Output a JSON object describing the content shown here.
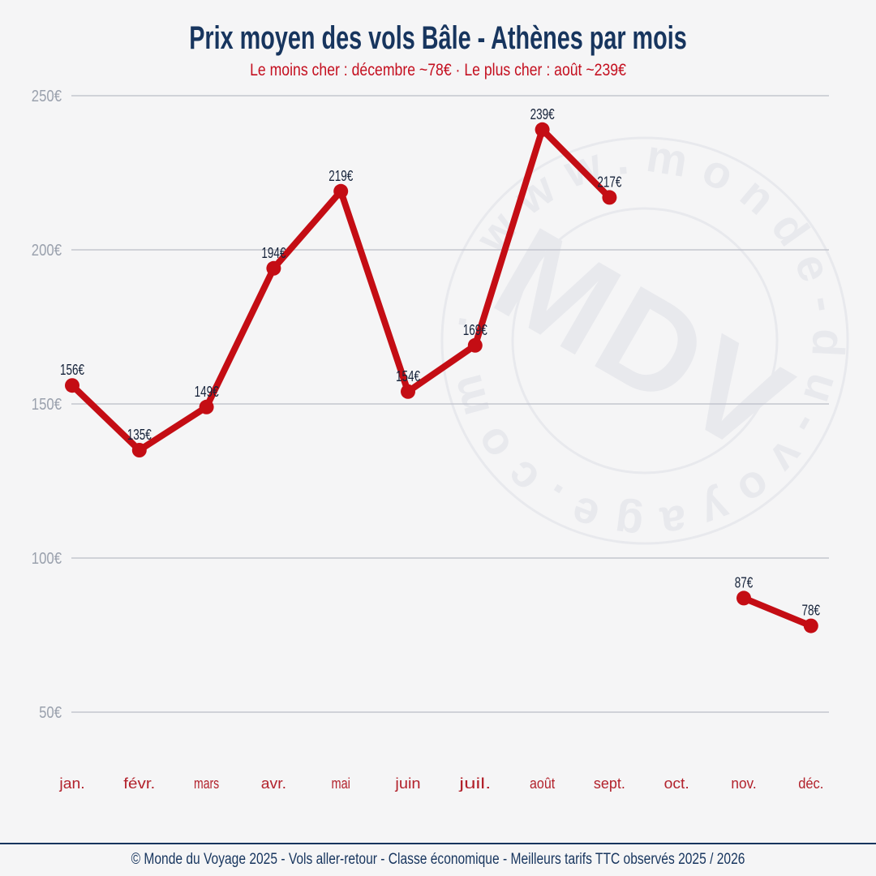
{
  "header": {
    "title": "Prix moyen des vols Bâle - Athènes par mois",
    "subtitle": "Le moins cher : décembre ~78€ · Le plus cher : août ~239€"
  },
  "footer": {
    "text": "© Monde du Voyage 2025 - Vols aller-retour - Classe économique - Meilleurs tarifs TTC observés 2025 / 2026"
  },
  "watermark": {
    "circle_text": "www.monde-du-voyage.com ·",
    "center_text": "MDV"
  },
  "colors": {
    "background": "#f5f5f6",
    "title": "#17355e",
    "subtitle": "#c40f1f",
    "line": "#c40d14",
    "grid": "#c3c6ce",
    "axis_tick": "#9aa1ad",
    "month_label": "#b2222c",
    "value_label": "#16233a",
    "footer_text": "#17355e",
    "footer_rule": "#17355e",
    "watermark": "#e8e9ed"
  },
  "chart_data": {
    "type": "line",
    "title": "Prix moyen des vols Bâle - Athènes par mois",
    "categories": [
      "jan.",
      "févr.",
      "mars",
      "avr.",
      "mai",
      "juin",
      "juil.",
      "août",
      "sept.",
      "oct.",
      "nov.",
      "déc."
    ],
    "values": [
      156,
      135,
      149,
      194,
      219,
      154,
      169,
      239,
      217,
      null,
      87,
      78
    ],
    "unit": "€",
    "xlabel": "",
    "ylabel": "",
    "yticks": [
      250,
      200,
      150,
      100,
      50
    ],
    "ylim": [
      50,
      250
    ],
    "grid": true,
    "legend": false
  }
}
